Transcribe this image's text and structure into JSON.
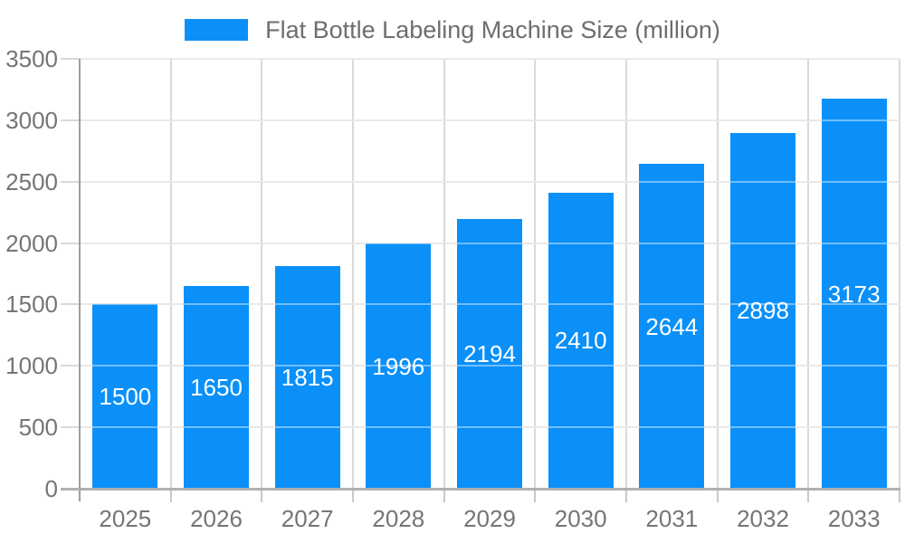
{
  "chart_data": {
    "type": "bar",
    "title": "Flat Bottle Labeling Machine Size (million)",
    "legend_position": "top",
    "grid": true,
    "categories": [
      "2025",
      "2026",
      "2027",
      "2028",
      "2029",
      "2030",
      "2031",
      "2032",
      "2033"
    ],
    "series": [
      {
        "name": "Flat Bottle Labeling Machine Size (million)",
        "values": [
          1500,
          1650,
          1815,
          1996,
          2194,
          2410,
          2644,
          2898,
          3173
        ]
      }
    ],
    "value_labels": [
      "1500",
      "1650",
      "1815",
      "1996",
      "2194",
      "2410",
      "2644",
      "2898",
      "3173"
    ],
    "xlabel": "",
    "ylabel": "",
    "ylim": [
      0,
      3500
    ],
    "yticks": [
      0,
      500,
      1000,
      1500,
      2000,
      2500,
      3000,
      3500
    ],
    "colors": {
      "bar": "#0a90f8",
      "value_text": "#ffffff",
      "axis_text": "#757575",
      "legend_text": "#6e6e6e",
      "grid": "#d9d9d9",
      "axis_line": "#9e9e9e",
      "baseline": "#b0b0b0",
      "tick": "#c9c9c9",
      "background": "#ffffff"
    }
  }
}
